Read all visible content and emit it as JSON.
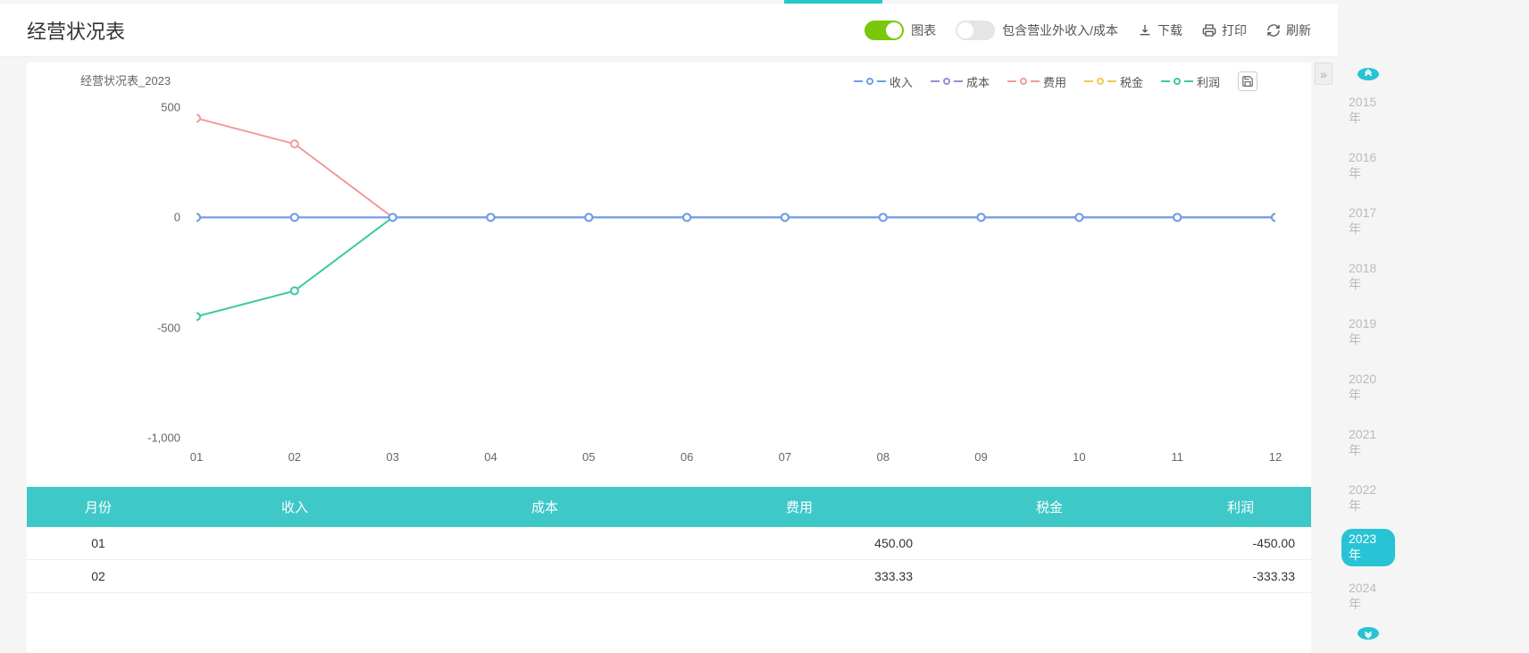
{
  "page": {
    "title": "经营状况表"
  },
  "toolbar": {
    "toggle_chart_label": "图表",
    "toggle_chart_on": true,
    "toggle_extra_label": "包含营业外收入/成本",
    "toggle_extra_on": false,
    "download_label": "下载",
    "print_label": "打印",
    "refresh_label": "刷新"
  },
  "chart": {
    "title": "经营状况表_2023",
    "type": "line",
    "x_categories": [
      "01",
      "02",
      "03",
      "04",
      "05",
      "06",
      "07",
      "08",
      "09",
      "10",
      "11",
      "12"
    ],
    "ylim": [
      -1000,
      500
    ],
    "y_ticks": [
      500,
      0,
      -500,
      -1000
    ],
    "y_tick_labels": [
      "500",
      "0",
      "-500",
      "-1,000"
    ],
    "grid": false,
    "background_color": "#ffffff",
    "marker_style": "circle-open",
    "marker_size": 8,
    "line_width": 2,
    "legend_position": "top-right",
    "series": [
      {
        "key": "revenue",
        "label": "收入",
        "color": "#6f9ced",
        "values": [
          0,
          0,
          0,
          0,
          0,
          0,
          0,
          0,
          0,
          0,
          0,
          0
        ]
      },
      {
        "key": "cost",
        "label": "成本",
        "color": "#9b8ad6",
        "values": [
          0,
          0,
          0,
          0,
          0,
          0,
          0,
          0,
          0,
          0,
          0,
          0
        ]
      },
      {
        "key": "expense",
        "label": "费用",
        "color": "#f29b9b",
        "values": [
          450.0,
          333.33,
          0,
          0,
          0,
          0,
          0,
          0,
          0,
          0,
          0,
          0
        ]
      },
      {
        "key": "tax",
        "label": "税金",
        "color": "#f2c94c",
        "values": [
          0,
          0,
          0,
          0,
          0,
          0,
          0,
          0,
          0,
          0,
          0,
          0
        ]
      },
      {
        "key": "profit",
        "label": "利润",
        "color": "#3cc8a6",
        "values": [
          -450.0,
          -333.33,
          0,
          0,
          0,
          0,
          0,
          0,
          0,
          0,
          0,
          0
        ]
      }
    ]
  },
  "table": {
    "columns": [
      {
        "key": "month",
        "label": "月份",
        "align": "center"
      },
      {
        "key": "revenue",
        "label": "收入",
        "align": "right"
      },
      {
        "key": "cost",
        "label": "成本",
        "align": "right"
      },
      {
        "key": "expense",
        "label": "费用",
        "align": "right"
      },
      {
        "key": "tax",
        "label": "税金",
        "align": "right"
      },
      {
        "key": "profit",
        "label": "利润",
        "align": "right"
      }
    ],
    "rows": [
      {
        "month": "01",
        "revenue": "",
        "cost": "",
        "expense": "450.00",
        "tax": "",
        "profit": "-450.00"
      },
      {
        "month": "02",
        "revenue": "",
        "cost": "",
        "expense": "333.33",
        "tax": "",
        "profit": "-333.33"
      }
    ],
    "header_bg": "#3fc8c8",
    "header_fg": "#ffffff"
  },
  "year_sidebar": {
    "items": [
      "2015年",
      "2016年",
      "2017年",
      "2018年",
      "2019年",
      "2020年",
      "2021年",
      "2022年",
      "2023年",
      "2024年"
    ],
    "active_index": 8,
    "active_bg": "#28c3d4",
    "active_fg": "#ffffff",
    "inactive_fg": "#bbbbbb"
  }
}
